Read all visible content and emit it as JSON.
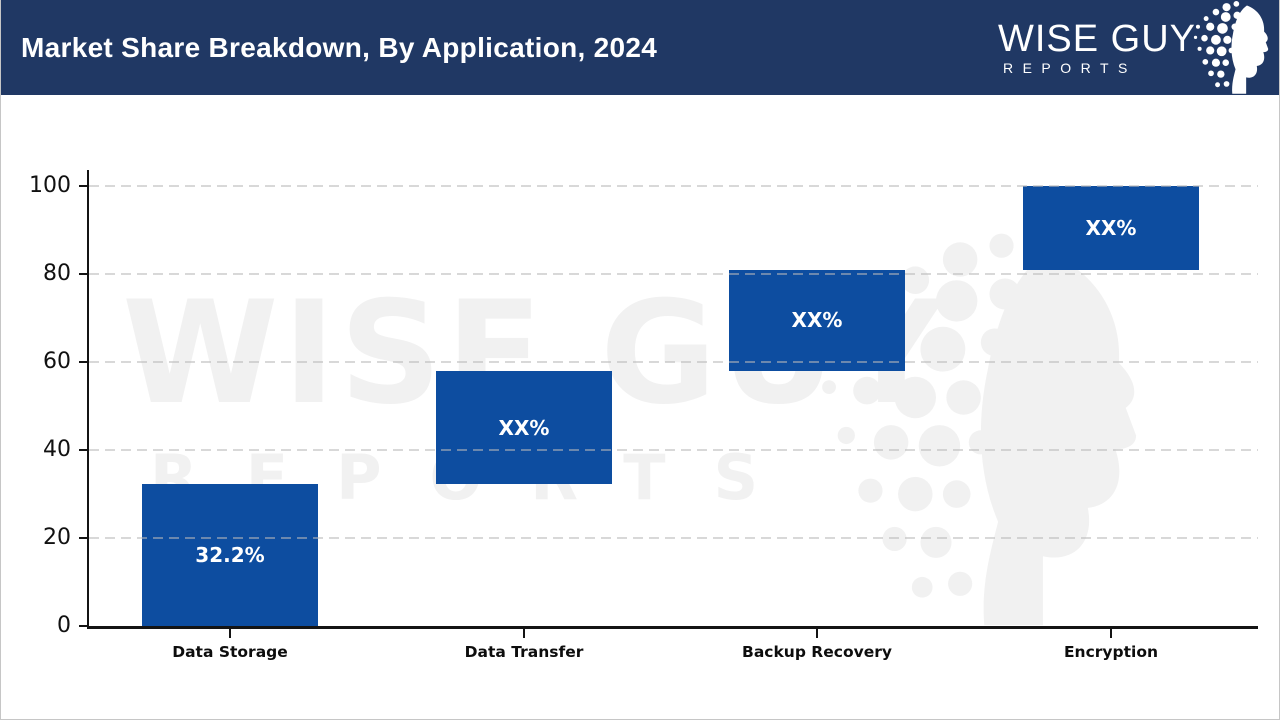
{
  "header": {
    "title": "Market Share Breakdown, By Application, 2024",
    "logo": {
      "primary": "WISE GUY",
      "secondary": "REPORTS"
    }
  },
  "watermark": {
    "primary": "WISE GUY",
    "secondary": "REPORTS"
  },
  "colors": {
    "header_bg": "#203864",
    "bar_fill": "#0d4da0",
    "bar_label": "#ffffff",
    "gridline": "#d9d9d9",
    "axis": "#141414",
    "tick_label": "#111111",
    "watermark_text": "#f1f1f1",
    "page_bg": "#ffffff",
    "border": "#c6c6c6"
  },
  "chart_data": {
    "type": "bar",
    "subtype": "waterfall",
    "title": "Market Share Breakdown, By Application, 2024",
    "xlabel": "",
    "ylabel": "",
    "categories": [
      "Data Storage",
      "Data Transfer",
      "Backup Recovery",
      "Encryption"
    ],
    "segments": [
      {
        "category": "Data Storage",
        "start": 0,
        "end": 32.2,
        "value": 32.2,
        "label": "32.2%"
      },
      {
        "category": "Data Transfer",
        "start": 32.2,
        "end": 58,
        "value": 25.8,
        "label": "XX%"
      },
      {
        "category": "Backup Recovery",
        "start": 58,
        "end": 81,
        "value": 23,
        "label": "XX%"
      },
      {
        "category": "Encryption",
        "start": 81,
        "end": 100,
        "value": 19,
        "label": "XX%"
      }
    ],
    "yticks": [
      0,
      20,
      40,
      60,
      80,
      100
    ],
    "ylim": [
      0,
      104
    ],
    "grid": "horizontal-dashed",
    "legend": "none"
  }
}
